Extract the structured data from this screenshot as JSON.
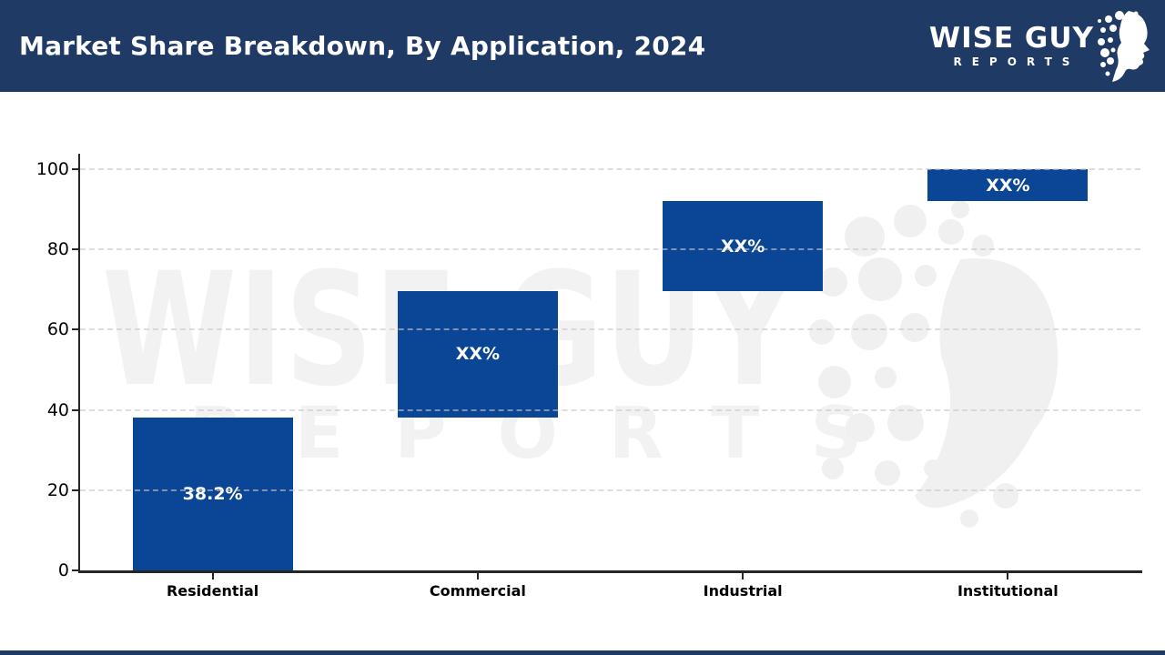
{
  "header": {
    "title": "Market Share Breakdown, By Application, 2024"
  },
  "brand": {
    "line1": "WISE GUY",
    "line2": "REPORTS"
  },
  "watermark": {
    "line1": "WISE GUY",
    "line2": "REPORTS"
  },
  "colors": {
    "header_bg": "#203a66",
    "footer_bg": "#203a66",
    "bar": "#0b4596",
    "gridline": "#dcdcdc",
    "axis": "#262626",
    "watermark": "#f2f2f2",
    "title_text": "#ffffff",
    "tick_text": "#000000"
  },
  "chart_data": {
    "type": "bar",
    "subtype": "waterfall-stacked",
    "title": "Market Share Breakdown, By Application, 2024",
    "categories": [
      "Residential",
      "Commercial",
      "Industrial",
      "Institutional"
    ],
    "segments": [
      {
        "category": "Residential",
        "start": 0,
        "end": 38.2,
        "label": "38.2%"
      },
      {
        "category": "Commercial",
        "start": 38.2,
        "end": 69.6,
        "label": "XX%"
      },
      {
        "category": "Industrial",
        "start": 69.6,
        "end": 92,
        "label": "XX%"
      },
      {
        "category": "Institutional",
        "start": 92,
        "end": 100,
        "label": "XX%"
      }
    ],
    "xlabel": "",
    "ylabel": "",
    "yticks": [
      0,
      20,
      40,
      60,
      80,
      100
    ],
    "ylim": [
      0,
      104
    ],
    "grid": "dashed-horizontal-over-bars",
    "legend": "none",
    "bar_color": "#0b4596"
  }
}
